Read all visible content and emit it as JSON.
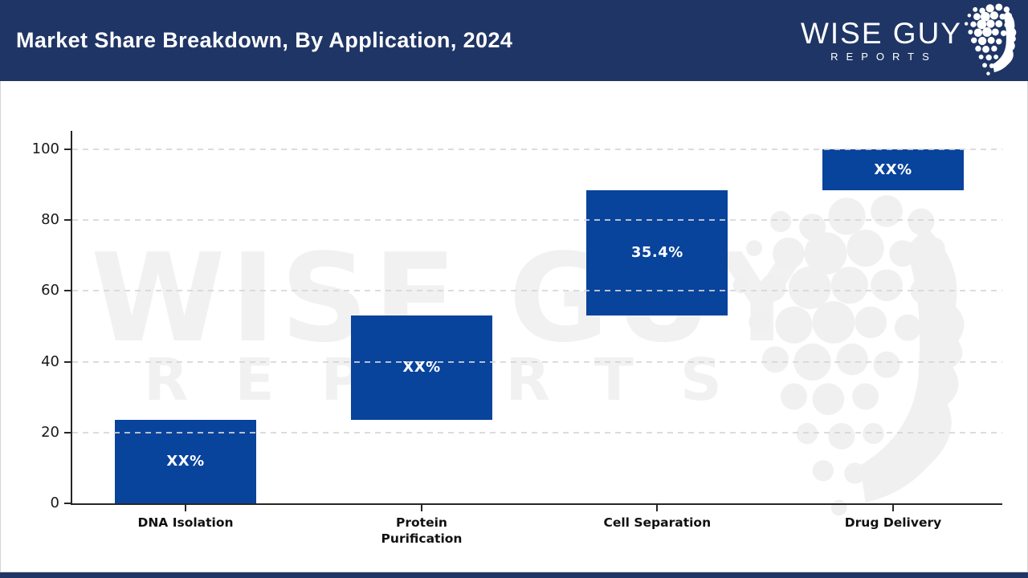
{
  "header": {
    "title": "Market Share Breakdown, By Application, 2024",
    "logo": {
      "line1": "WISE GUY",
      "line2": "REPORTS"
    }
  },
  "watermark": {
    "line1": "WISE GUY",
    "line2": "REPORTS"
  },
  "chart_data": {
    "type": "bar",
    "subtype": "floating-waterfall",
    "title": "Market Share Breakdown, By Application, 2024",
    "categories": [
      "DNA Isolation",
      "Protein\nPurification",
      "Cell Separation",
      "Drug Delivery"
    ],
    "segments": [
      {
        "category": "DNA Isolation",
        "start": 0,
        "end": 23.5,
        "label": "XX%"
      },
      {
        "category": "Protein Purification",
        "start": 23.5,
        "end": 53,
        "label": "XX%"
      },
      {
        "category": "Cell Separation",
        "start": 53,
        "end": 88.4,
        "label": "35.4%"
      },
      {
        "category": "Drug Delivery",
        "start": 88.4,
        "end": 100,
        "label": "XX%"
      }
    ],
    "xlabel": "",
    "ylabel": "",
    "yticks": [
      0,
      20,
      40,
      60,
      80,
      100
    ],
    "ylim": [
      0,
      105
    ],
    "grid": "horizontal-dashed",
    "legend": "none",
    "bar_color": "#08439C",
    "bar_label_color": "#FFFFFF",
    "axis_color": "#262626",
    "header_color": "#1F3565"
  }
}
